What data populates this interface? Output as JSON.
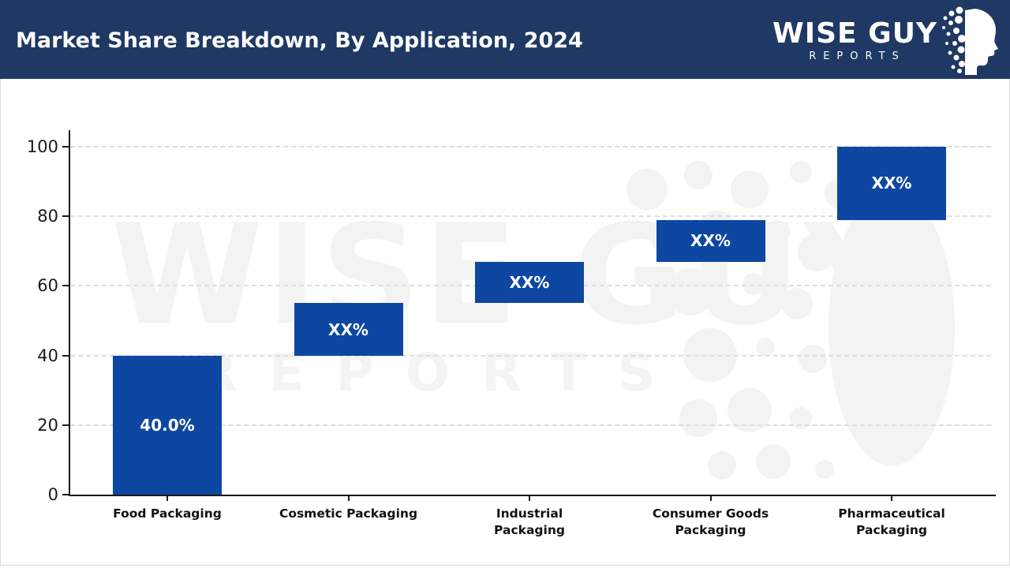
{
  "header": {
    "title": "Market Share Breakdown, By Application, 2024",
    "logo": {
      "line1": "WISE GUY",
      "line2": "REPORTS"
    }
  },
  "watermark": {
    "line1": "WISE GUY",
    "line2": "REPORTS"
  },
  "colors": {
    "header_bg": "#1f3864",
    "bar": "#0d47a1",
    "grid": "#dedede",
    "axis": "#1a1a1a",
    "bar_label_text": "#ffffff",
    "watermark": "#f3f3f3"
  },
  "chart_data": {
    "type": "bar",
    "subtype": "waterfall",
    "title": "Market Share Breakdown, By Application, 2024",
    "categories": [
      "Food Packaging",
      "Cosmetic Packaging",
      "Industrial Packaging",
      "Consumer Goods Packaging",
      "Pharmaceutical Packaging"
    ],
    "bars": [
      {
        "category": "Food Packaging",
        "start": 0,
        "end": 40,
        "label": "40.0%"
      },
      {
        "category": "Cosmetic Packaging",
        "start": 40,
        "end": 55,
        "label": "XX%"
      },
      {
        "category": "Industrial\nPackaging",
        "start": 55,
        "end": 67,
        "label": "XX%"
      },
      {
        "category": "Consumer Goods\nPackaging",
        "start": 67,
        "end": 79,
        "label": "XX%"
      },
      {
        "category": "Pharmaceutical\nPackaging",
        "start": 79,
        "end": 100,
        "label": "XX%"
      }
    ],
    "yticks": [
      0,
      20,
      40,
      60,
      80,
      100
    ],
    "ylim": [
      0,
      100
    ],
    "xlabel": "",
    "ylabel": "",
    "grid": "horizontal-dashed",
    "legend": "none"
  }
}
